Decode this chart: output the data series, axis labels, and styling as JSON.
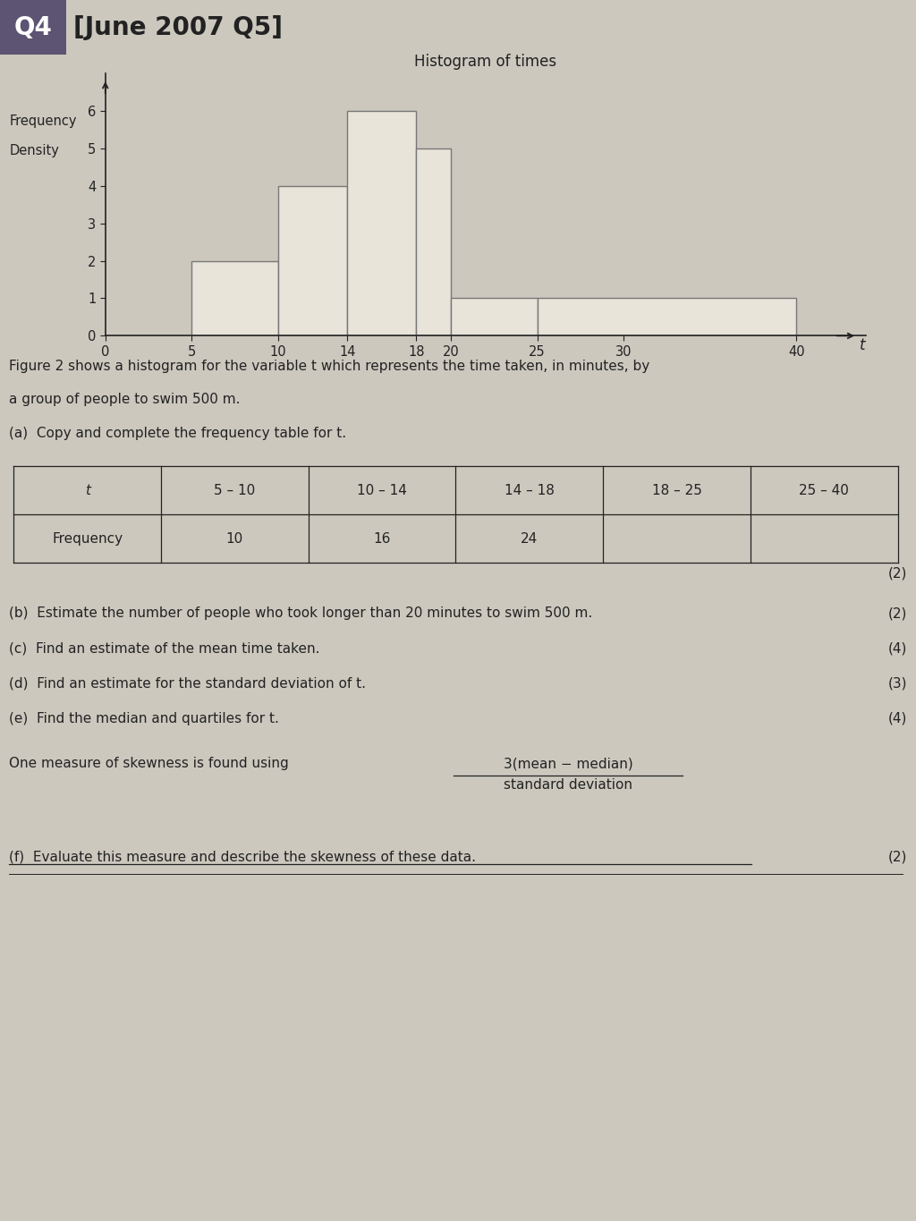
{
  "hist_title": "Histogram of times",
  "ylabel_line1": "Frequency",
  "ylabel_line2": "Density",
  "xlabel": "t",
  "bins": [
    5,
    10,
    14,
    18,
    20,
    25,
    40
  ],
  "heights": [
    2.0,
    4.0,
    6.0,
    5.0,
    1.0,
    1.0
  ],
  "yticks": [
    0,
    1,
    2,
    3,
    4,
    5,
    6
  ],
  "xticks": [
    0,
    5,
    10,
    14,
    18,
    20,
    25,
    30,
    40
  ],
  "xlim": [
    0,
    44
  ],
  "ylim": [
    0,
    7.0
  ],
  "fig_bg": "#ccc8be",
  "plot_bg": "#ccc8be",
  "bar_facecolor": "#e8e4da",
  "bar_edgecolor": "#777777",
  "text_color": "#222222",
  "q4_bg": "#5c5472",
  "q4_text": "Q4",
  "title_text": "[June 2007 Q5]",
  "body_text_line1": "Figure 2 shows a histogram for the variable t which represents the time taken, in minutes, by",
  "body_text_line2": "a group of people to swim 500 m.",
  "body_text_line3": "(a)  Copy and complete the frequency table for t.",
  "table_headers": [
    "t",
    "5 – 10",
    "10 – 14",
    "14 – 18",
    "18 – 25",
    "25 – 40"
  ],
  "table_row": [
    "Frequency",
    "10",
    "16",
    "24",
    "",
    ""
  ],
  "marks_a": "(2)",
  "q_b": "(b)  Estimate the number of people who took longer than 20 minutes to swim 500 m.",
  "q_c": "(c)  Find an estimate of the mean time taken.",
  "q_d": "(d)  Find an estimate for the standard deviation of t.",
  "q_e": "(e)  Find the median and quartiles for t.",
  "m_b": "(2)",
  "m_c": "(4)",
  "m_d": "(3)",
  "m_e": "(4)",
  "skew_intro": "One measure of skewness is found using",
  "skew_num": "3(mean − median)",
  "skew_den": "standard deviation",
  "last_q": "(f)  Evaluate this measure and describe the skewness of these data.",
  "last_m": "(2)"
}
